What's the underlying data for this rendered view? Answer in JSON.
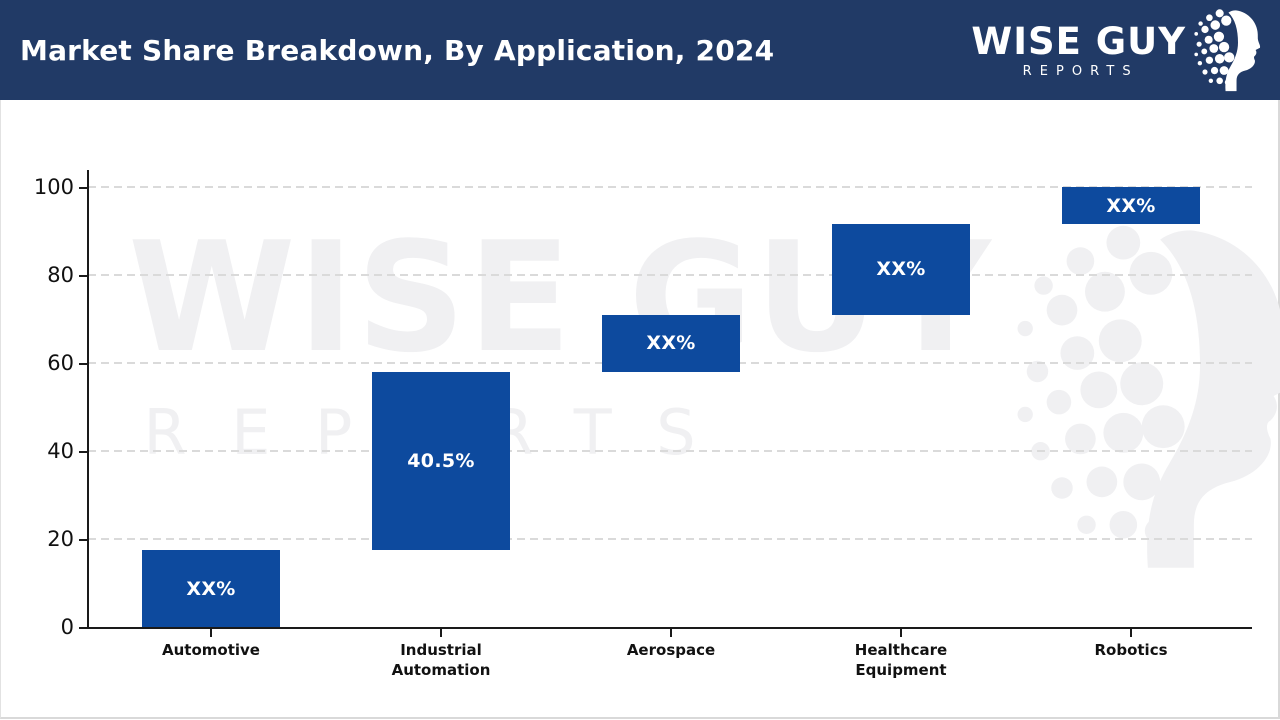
{
  "header": {
    "title": "Market Share Breakdown, By Application, 2024",
    "logo": {
      "line1": "WISE GUY",
      "line2": "REPORTS"
    }
  },
  "watermark": {
    "line1": "WISE GUY",
    "line2": "REPORTS"
  },
  "colors": {
    "header_bg": "#213a66",
    "bar": "#0d4a9e",
    "grid": "#dadada",
    "axis": "#1a1a1a",
    "bar_label_text": "#ffffff",
    "watermark": "#f0f0f2"
  },
  "chart_data": {
    "type": "bar",
    "variant": "waterfall",
    "title": "Market Share Breakdown, By Application, 2024",
    "xlabel": "",
    "ylabel": "",
    "categories": [
      "Automotive",
      "Industrial Automation",
      "Aerospace",
      "Healthcare Equipment",
      "Robotics"
    ],
    "segments": [
      {
        "category": "Automotive",
        "start": 0,
        "end": 17.5,
        "value": 17.5,
        "label": "XX%"
      },
      {
        "category": "Industrial Automation",
        "start": 17.5,
        "end": 58,
        "value": 40.5,
        "label": "40.5%"
      },
      {
        "category": "Aerospace",
        "start": 58,
        "end": 71,
        "value": 13,
        "label": "XX%"
      },
      {
        "category": "Healthcare Equipment",
        "start": 71,
        "end": 91.5,
        "value": 20.5,
        "label": "XX%"
      },
      {
        "category": "Robotics",
        "start": 91.5,
        "end": 100,
        "value": 8.5,
        "label": "XX%"
      }
    ],
    "yticks": [
      0,
      20,
      40,
      60,
      80,
      100
    ],
    "ylim": [
      0,
      104
    ],
    "grid": "horizontal-dashed",
    "legend": "none"
  }
}
